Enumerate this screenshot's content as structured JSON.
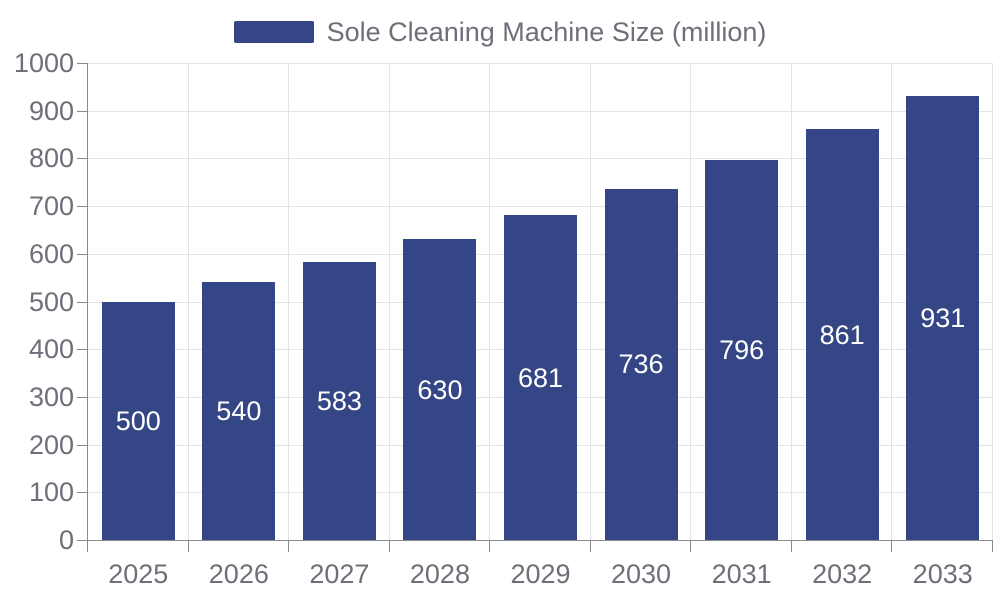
{
  "legend": {
    "label": "Sole Cleaning Machine Size (million)"
  },
  "chart_data": {
    "type": "bar",
    "title": "",
    "series_name": "Sole Cleaning Machine Size (million)",
    "categories": [
      "2025",
      "2026",
      "2027",
      "2028",
      "2029",
      "2030",
      "2031",
      "2032",
      "2033"
    ],
    "values": [
      500,
      540,
      583,
      630,
      681,
      736,
      796,
      861,
      931
    ],
    "xlabel": "",
    "ylabel": "",
    "ylim": [
      0,
      1000
    ],
    "y_ticks": [
      0,
      100,
      200,
      300,
      400,
      500,
      600,
      700,
      800,
      900,
      1000
    ],
    "grid": true,
    "legend_position": "top-center",
    "value_labels_position": "inside-middle",
    "colors": {
      "bar": "#344685",
      "value_label": "#ffffff",
      "axis_label": "#6E7079",
      "legend_text": "#6E7079",
      "axis_line": "#86888d",
      "gridline": "#e2e4e9"
    }
  }
}
